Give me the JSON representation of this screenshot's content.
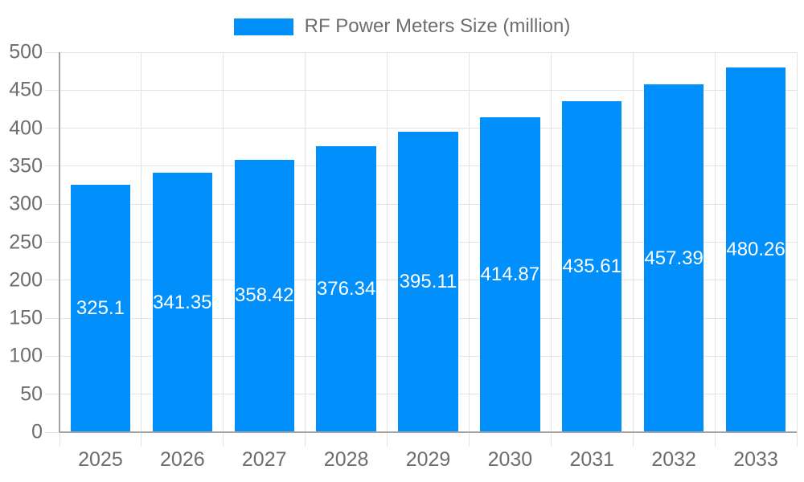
{
  "chart_data": {
    "type": "bar",
    "title": "RF Power Meters Size (million)",
    "legend": {
      "label": "RF Power Meters Size (million)",
      "position": "top"
    },
    "categories": [
      "2025",
      "2026",
      "2027",
      "2028",
      "2029",
      "2030",
      "2031",
      "2032",
      "2033"
    ],
    "values": [
      325.1,
      341.35,
      358.42,
      376.34,
      395.11,
      414.87,
      435.61,
      457.39,
      480.26
    ],
    "value_labels": [
      "325.1",
      "341.35",
      "358.42",
      "376.34",
      "395.11",
      "414.87",
      "435.61",
      "457.39",
      "480.26"
    ],
    "xlabel": "",
    "ylabel": "",
    "ylim": [
      0,
      500
    ],
    "ytick_step": 50,
    "grid": true,
    "bar_width_fraction": 0.73,
    "colors": {
      "bar": "#008ffb",
      "gridline": "#e3e3e3",
      "axis": "#a4a4a4",
      "tick_label": "#6d6d6d",
      "value_label": "#ffffff",
      "background": "#ffffff"
    }
  }
}
